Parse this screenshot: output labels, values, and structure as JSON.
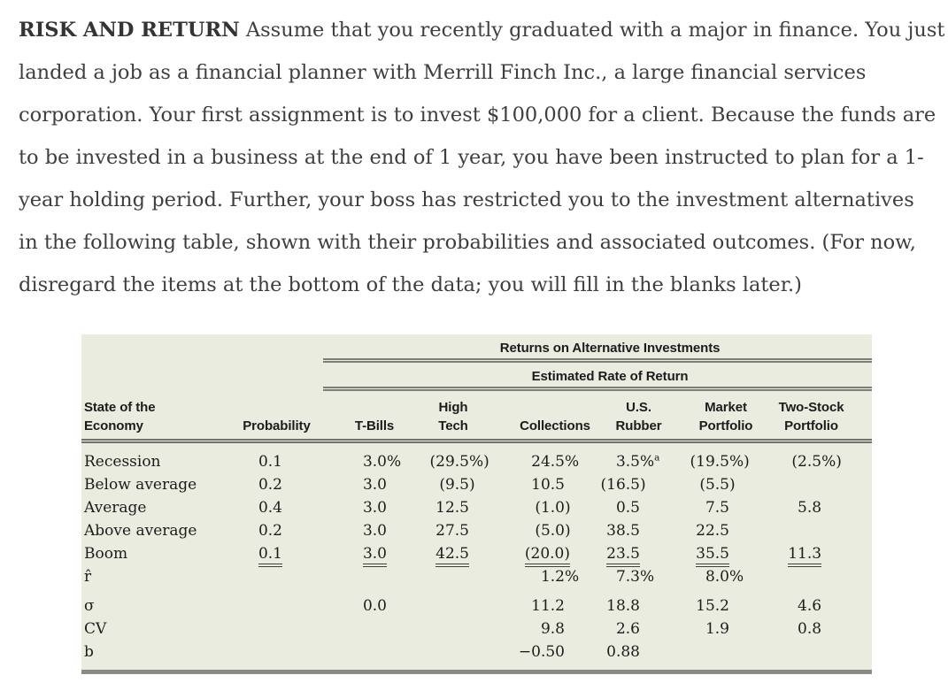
{
  "intro": {
    "lead": "RISK AND RETURN",
    "line1_rest": " Assume that you recently graduated with a major in finance. You just",
    "lines": [
      "landed a job as a financial planner with Merrill Finch Inc., a large financial services",
      "corporation. Your first assignment is to invest $100,000 for a client. Because the funds are",
      "to be invested in a business at the end of 1 year, you have been instructed to plan for a 1-",
      "year holding period. Further, your boss has restricted you to the investment alternatives",
      "in the following table, shown with their probabilities and associated outcomes. (For now,",
      "disregard the items at the bottom of the data; you will fill in the blanks later.)"
    ]
  },
  "table": {
    "group_header": "Returns on Alternative Investments",
    "sub_header": "Estimated Rate of Return",
    "columns": [
      "State of the\nEconomy",
      "Probability",
      "T-Bills",
      "High\nTech",
      "Collections",
      "U.S.\nRubber",
      "Market\nPortfolio",
      "Two-Stock\nPortfolio"
    ],
    "rows": [
      {
        "label": "Recession",
        "cells": [
          "0.1",
          "3.0%",
          "(29.5%)",
          "24.5%",
          "3.5%ᵃ",
          "(19.5%)",
          "(2.5%)"
        ]
      },
      {
        "label": "Below average",
        "cells": [
          "0.2",
          "3.0",
          "(9.5)",
          "10.5",
          "(16.5)",
          "(5.5)",
          ""
        ]
      },
      {
        "label": "Average",
        "cells": [
          "0.4",
          "3.0",
          "12.5",
          "(1.0)",
          "0.5",
          "7.5",
          "5.8"
        ]
      },
      {
        "label": "Above average",
        "cells": [
          "0.2",
          "3.0",
          "27.5",
          "(5.0)",
          "38.5",
          "22.5",
          ""
        ]
      },
      {
        "label": "Boom",
        "cells": [
          "0.1",
          "3.0",
          "42.5",
          "(20.0)",
          "23.5",
          "35.5",
          "11.3"
        ],
        "underline": true
      },
      {
        "label": "r̂",
        "cells": [
          "",
          "",
          "",
          "1.2%",
          "7.3%",
          "8.0%",
          ""
        ]
      },
      {
        "label": "σ",
        "cells": [
          "",
          "0.0",
          "",
          "11.2",
          "18.8",
          "15.2",
          "4.6"
        ],
        "gap_above": true
      },
      {
        "label": "CV",
        "cells": [
          "",
          "",
          "",
          "9.8",
          "2.6",
          "1.9",
          "0.8"
        ]
      },
      {
        "label": "b",
        "cells": [
          "",
          "",
          "",
          "−0.50",
          "0.88",
          "",
          ""
        ]
      }
    ],
    "footnote_marker": "a"
  },
  "colors": {
    "table_background": "#e9ecdf",
    "double_rule": "#7e7e76",
    "bottom_rule": "#8b8b85",
    "table_text": "#1c1c1c",
    "paragraph_text": "#3e3e3e"
  }
}
